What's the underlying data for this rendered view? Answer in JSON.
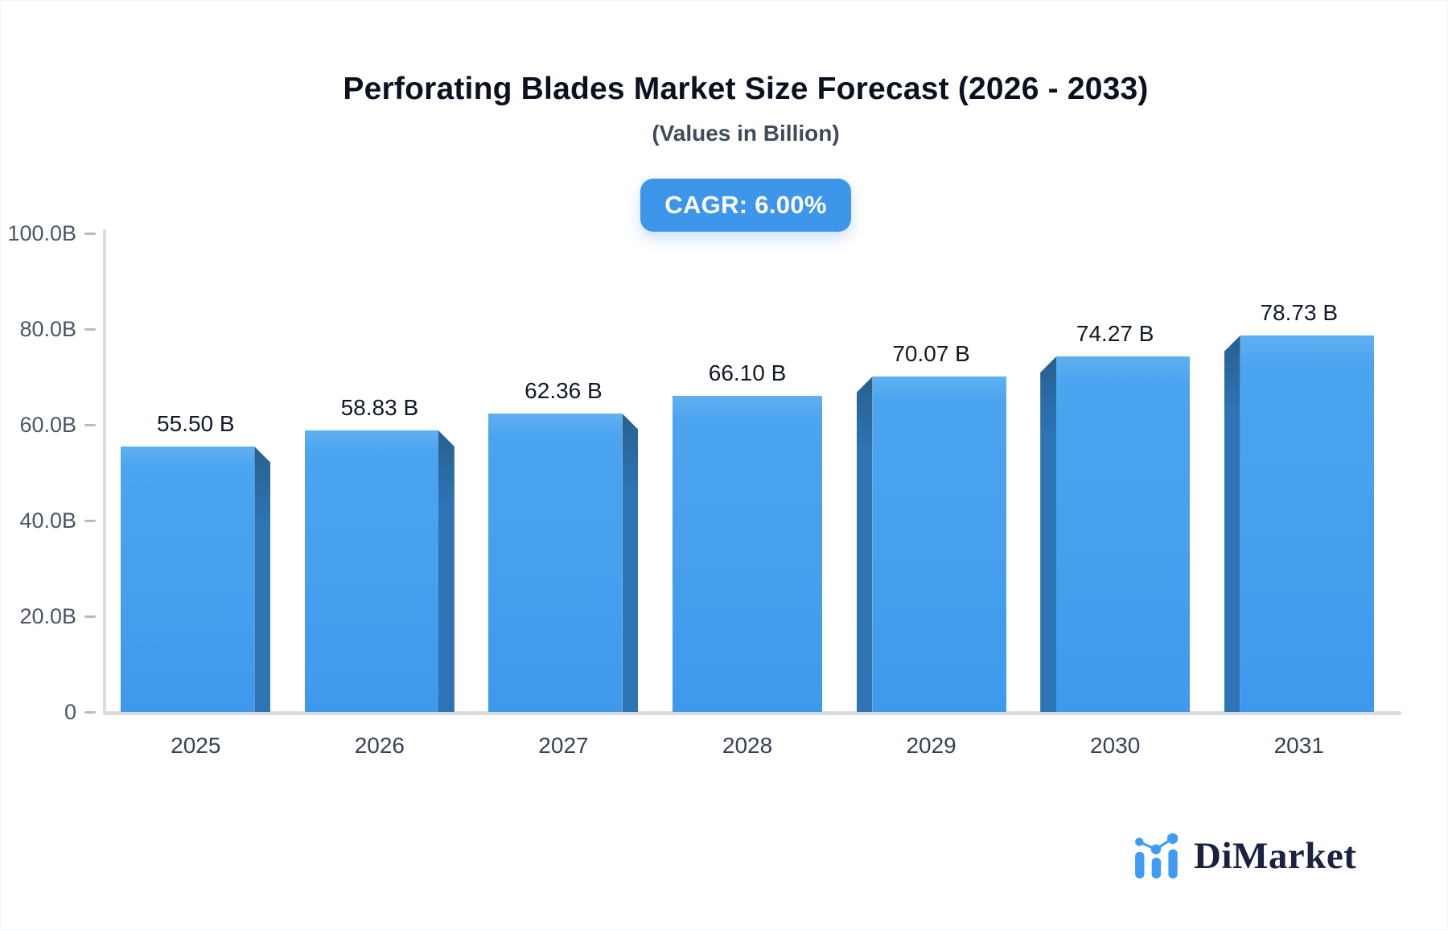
{
  "header": {
    "title": "Perforating Blades Market Size Forecast (2026 - 2033)",
    "subtitle": "(Values in Billion)",
    "cagr_label": "CAGR: 6.00%"
  },
  "chart_data": {
    "type": "bar",
    "categories": [
      "2025",
      "2026",
      "2027",
      "2028",
      "2029",
      "2030",
      "2031"
    ],
    "values": [
      55.5,
      58.83,
      62.36,
      66.1,
      70.07,
      74.27,
      78.73
    ],
    "value_labels": [
      "55.50 B",
      "58.83 B",
      "62.36 B",
      "66.10 B",
      "70.07 B",
      "74.27 B",
      "78.73 B"
    ],
    "title": "Perforating Blades Market Size Forecast (2026 - 2033)",
    "xlabel": "",
    "ylabel": "",
    "ylim": [
      0,
      100
    ],
    "ytick_values": [
      0,
      20,
      40,
      60,
      80,
      100
    ],
    "ytick_labels": [
      "0",
      "20.0B",
      "40.0B",
      "60.0B",
      "80.0B",
      "100.0B"
    ],
    "grid": false,
    "legend": false,
    "style": "3d-perspective-bars, side face toward chart center"
  },
  "colors": {
    "bar_fill_top": "#60b0f2",
    "bar_fill_bottom": "#3e99ed",
    "bar_side": "#2d74b4",
    "badge_bg": "#3e96ea",
    "axis_line": "#d9dde3",
    "title_text": "#0b1120",
    "value_label_text": "#111827",
    "ytick_text": "#4b5563",
    "xtick_text": "#374151",
    "logo_blue": "#3f9cf5",
    "logo_navy": "#19223f"
  },
  "branding": {
    "name": "DiMarket",
    "icon": "bar-chart-sparkline-icon"
  }
}
